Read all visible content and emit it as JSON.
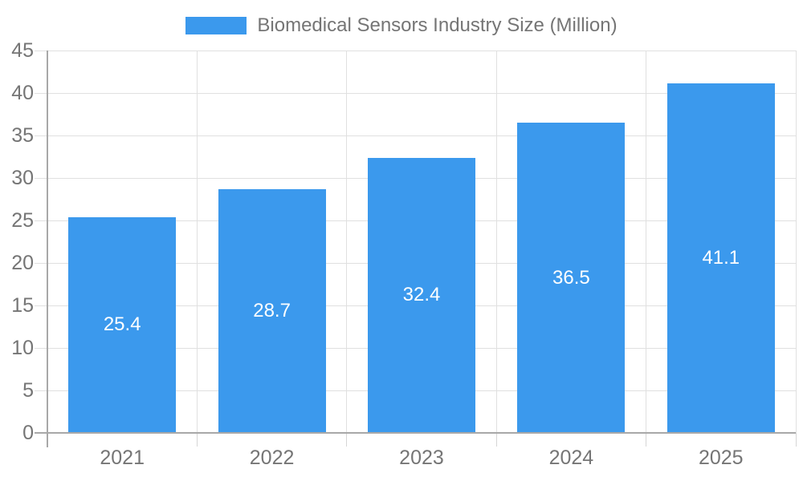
{
  "chart_data": {
    "type": "bar",
    "title": "Biomedical Sensors Industry Size (Million)",
    "legend": {
      "label": "Biomedical Sensors Industry Size (Million)",
      "position": "top"
    },
    "categories": [
      "2021",
      "2022",
      "2023",
      "2024",
      "2025"
    ],
    "series": [
      {
        "name": "Biomedical Sensors Industry Size (Million)",
        "values": [
          25.4,
          28.7,
          32.4,
          36.5,
          41.1
        ]
      }
    ],
    "values": [
      25.4,
      28.7,
      32.4,
      36.5,
      41.1
    ],
    "value_labels": [
      "25.4",
      "28.7",
      "32.4",
      "36.5",
      "41.1"
    ],
    "xlabel": "",
    "ylabel": "",
    "ylim": [
      0,
      45
    ],
    "ytick_step": 5,
    "ytick_labels": [
      "0",
      "5",
      "10",
      "15",
      "20",
      "25",
      "30",
      "35",
      "40",
      "45"
    ],
    "grid": true,
    "colors": {
      "bar": "#3B99ED",
      "text": "#757575",
      "value_text": "#FFFFFF",
      "axis": "#A8A8A8",
      "grid": "#E0E0E0",
      "tick": "#D6D6D6",
      "background": "#FFFFFF"
    }
  }
}
